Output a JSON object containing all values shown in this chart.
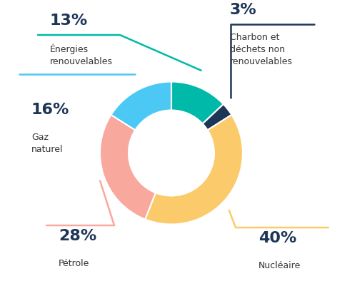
{
  "slices": [
    {
      "label": "Énergies\nrenouvelables",
      "pct": 13,
      "color": "#00B9A8",
      "line_color": "#00B9A8"
    },
    {
      "label": "Charbon et\ndéchets non\nrenouvelables",
      "pct": 3,
      "color": "#1D3557",
      "line_color": "#1D3557"
    },
    {
      "label": "Nucléaire",
      "pct": 40,
      "color": "#FBCB6B",
      "line_color": "#FBCB6B"
    },
    {
      "label": "Pétrole",
      "pct": 28,
      "color": "#F9A89E",
      "line_color": "#F9A89E"
    },
    {
      "label": "Gaz\nnaturel",
      "pct": 16,
      "color": "#4CC8F4",
      "line_color": "#4CC8F4"
    }
  ],
  "start_angle": 90,
  "donut_width": 0.4,
  "background_color": "#FFFFFF",
  "label_fontsize": 9.0,
  "pct_fontsize": 16,
  "dark_color": "#1D3557"
}
